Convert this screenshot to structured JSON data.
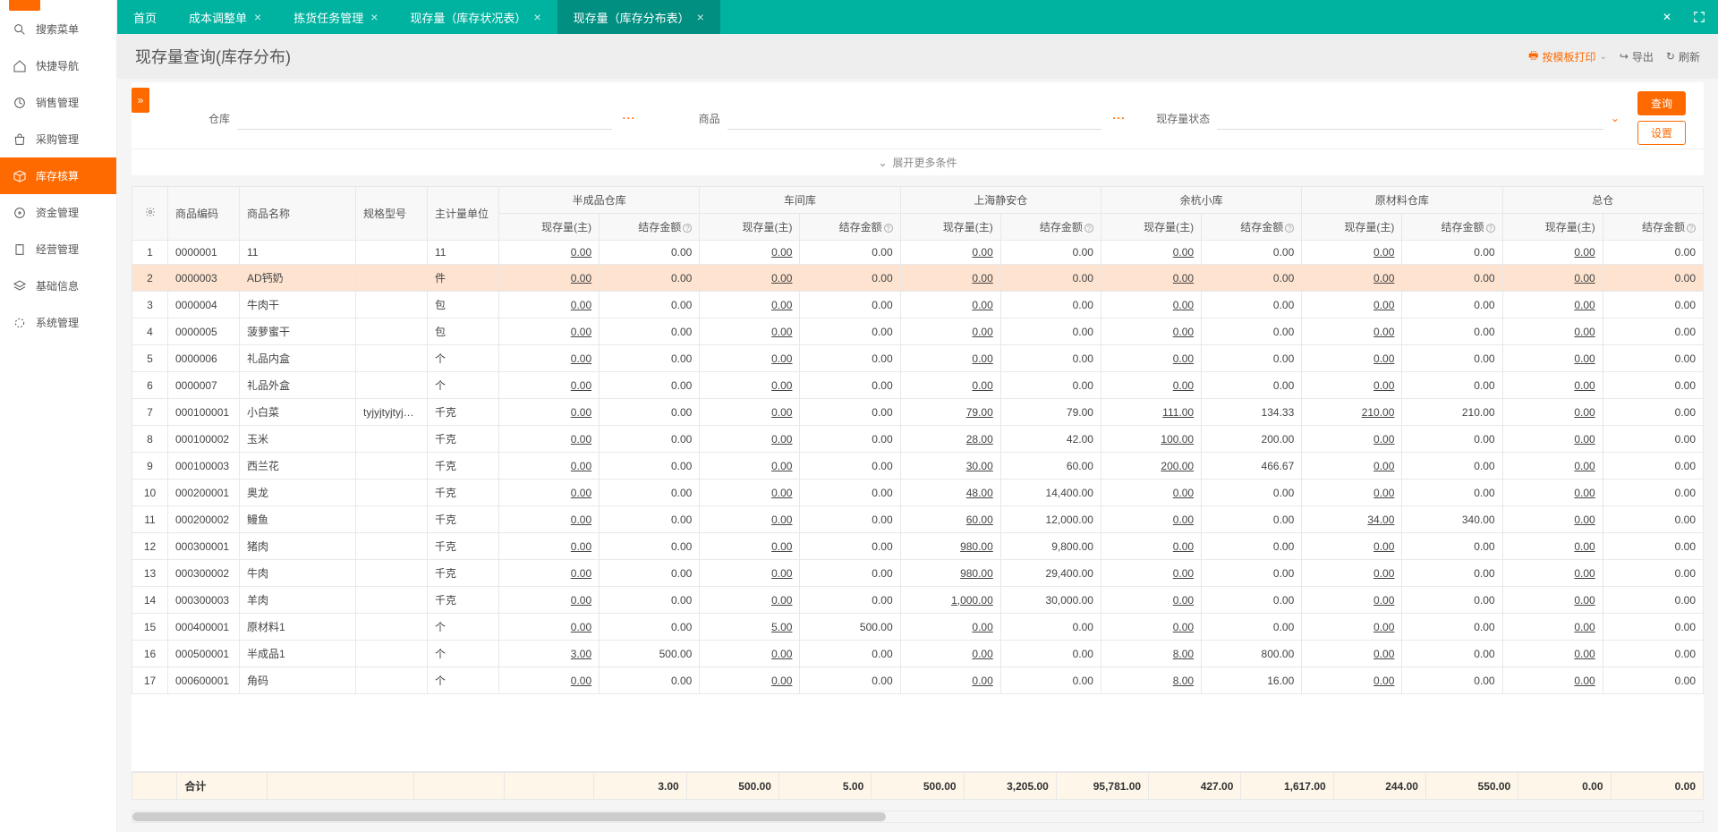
{
  "sidebar": {
    "items": [
      {
        "label": "搜索菜单",
        "icon": "search"
      },
      {
        "label": "快捷导航",
        "icon": "home"
      },
      {
        "label": "销售管理",
        "icon": "badge"
      },
      {
        "label": "采购管理",
        "icon": "bag"
      },
      {
        "label": "库存核算",
        "icon": "box",
        "active": true
      },
      {
        "label": "资金管理",
        "icon": "coin"
      },
      {
        "label": "经营管理",
        "icon": "clipboard"
      },
      {
        "label": "基础信息",
        "icon": "layers"
      },
      {
        "label": "系统管理",
        "icon": "gear-dash"
      }
    ]
  },
  "tabs": [
    {
      "label": "首页"
    },
    {
      "label": "成本调整单",
      "closable": true
    },
    {
      "label": "拣货任务管理",
      "closable": true
    },
    {
      "label": "现存量（库存状况表）",
      "closable": true
    },
    {
      "label": "现存量（库存分布表）",
      "closable": true,
      "active": true
    }
  ],
  "page": {
    "title": "现存量查询(库存分布)",
    "actions": {
      "print": "按模板打印",
      "export": "导出",
      "refresh": "刷新"
    }
  },
  "filters": {
    "warehouse_label": "仓库",
    "product_label": "商品",
    "status_label": "现存量状态",
    "query_btn": "查询",
    "settings_btn": "设置",
    "expand": "展开更多条件"
  },
  "table": {
    "group_headers": [
      "",
      "商品编码",
      "商品名称",
      "规格型号",
      "主计量单位",
      "半成品仓库",
      "车间库",
      "上海静安仓",
      "余杭小库",
      "原材料仓库",
      "总仓"
    ],
    "sub_qty": "现存量(主)",
    "sub_amt": "结存金额",
    "footer_label": "合计",
    "rows": [
      {
        "idx": 1,
        "code": "0000001",
        "name": "11",
        "spec": "",
        "unit": "11",
        "w": [
          [
            "0.00",
            "0.00"
          ],
          [
            "0.00",
            "0.00"
          ],
          [
            "0.00",
            "0.00"
          ],
          [
            "0.00",
            "0.00"
          ],
          [
            "0.00",
            "0.00"
          ],
          [
            "0.00",
            "0.00"
          ]
        ]
      },
      {
        "idx": 2,
        "code": "0000003",
        "name": "AD钙奶",
        "spec": "",
        "unit": "件",
        "w": [
          [
            "0.00",
            "0.00"
          ],
          [
            "0.00",
            "0.00"
          ],
          [
            "0.00",
            "0.00"
          ],
          [
            "0.00",
            "0.00"
          ],
          [
            "0.00",
            "0.00"
          ],
          [
            "0.00",
            "0.00"
          ]
        ],
        "hl": true
      },
      {
        "idx": 3,
        "code": "0000004",
        "name": "牛肉干",
        "spec": "",
        "unit": "包",
        "w": [
          [
            "0.00",
            "0.00"
          ],
          [
            "0.00",
            "0.00"
          ],
          [
            "0.00",
            "0.00"
          ],
          [
            "0.00",
            "0.00"
          ],
          [
            "0.00",
            "0.00"
          ],
          [
            "0.00",
            "0.00"
          ]
        ]
      },
      {
        "idx": 4,
        "code": "0000005",
        "name": "菠萝蜜干",
        "spec": "",
        "unit": "包",
        "w": [
          [
            "0.00",
            "0.00"
          ],
          [
            "0.00",
            "0.00"
          ],
          [
            "0.00",
            "0.00"
          ],
          [
            "0.00",
            "0.00"
          ],
          [
            "0.00",
            "0.00"
          ],
          [
            "0.00",
            "0.00"
          ]
        ]
      },
      {
        "idx": 5,
        "code": "0000006",
        "name": "礼品内盒",
        "spec": "",
        "unit": "个",
        "w": [
          [
            "0.00",
            "0.00"
          ],
          [
            "0.00",
            "0.00"
          ],
          [
            "0.00",
            "0.00"
          ],
          [
            "0.00",
            "0.00"
          ],
          [
            "0.00",
            "0.00"
          ],
          [
            "0.00",
            "0.00"
          ]
        ]
      },
      {
        "idx": 6,
        "code": "0000007",
        "name": "礼品外盒",
        "spec": "",
        "unit": "个",
        "w": [
          [
            "0.00",
            "0.00"
          ],
          [
            "0.00",
            "0.00"
          ],
          [
            "0.00",
            "0.00"
          ],
          [
            "0.00",
            "0.00"
          ],
          [
            "0.00",
            "0.00"
          ],
          [
            "0.00",
            "0.00"
          ]
        ]
      },
      {
        "idx": 7,
        "code": "000100001",
        "name": "小白菜",
        "spec": "tyjyjtyjtyjdf...",
        "unit": "千克",
        "w": [
          [
            "0.00",
            "0.00"
          ],
          [
            "0.00",
            "0.00"
          ],
          [
            "79.00",
            "79.00"
          ],
          [
            "111.00",
            "134.33"
          ],
          [
            "210.00",
            "210.00"
          ],
          [
            "0.00",
            "0.00"
          ]
        ]
      },
      {
        "idx": 8,
        "code": "000100002",
        "name": "玉米",
        "spec": "",
        "unit": "千克",
        "w": [
          [
            "0.00",
            "0.00"
          ],
          [
            "0.00",
            "0.00"
          ],
          [
            "28.00",
            "42.00"
          ],
          [
            "100.00",
            "200.00"
          ],
          [
            "0.00",
            "0.00"
          ],
          [
            "0.00",
            "0.00"
          ]
        ]
      },
      {
        "idx": 9,
        "code": "000100003",
        "name": "西兰花",
        "spec": "",
        "unit": "千克",
        "w": [
          [
            "0.00",
            "0.00"
          ],
          [
            "0.00",
            "0.00"
          ],
          [
            "30.00",
            "60.00"
          ],
          [
            "200.00",
            "466.67"
          ],
          [
            "0.00",
            "0.00"
          ],
          [
            "0.00",
            "0.00"
          ]
        ]
      },
      {
        "idx": 10,
        "code": "000200001",
        "name": "奥龙",
        "spec": "",
        "unit": "千克",
        "w": [
          [
            "0.00",
            "0.00"
          ],
          [
            "0.00",
            "0.00"
          ],
          [
            "48.00",
            "14,400.00"
          ],
          [
            "0.00",
            "0.00"
          ],
          [
            "0.00",
            "0.00"
          ],
          [
            "0.00",
            "0.00"
          ]
        ]
      },
      {
        "idx": 11,
        "code": "000200002",
        "name": "鳗鱼",
        "spec": "",
        "unit": "千克",
        "w": [
          [
            "0.00",
            "0.00"
          ],
          [
            "0.00",
            "0.00"
          ],
          [
            "60.00",
            "12,000.00"
          ],
          [
            "0.00",
            "0.00"
          ],
          [
            "34.00",
            "340.00"
          ],
          [
            "0.00",
            "0.00"
          ]
        ]
      },
      {
        "idx": 12,
        "code": "000300001",
        "name": "猪肉",
        "spec": "",
        "unit": "千克",
        "w": [
          [
            "0.00",
            "0.00"
          ],
          [
            "0.00",
            "0.00"
          ],
          [
            "980.00",
            "9,800.00"
          ],
          [
            "0.00",
            "0.00"
          ],
          [
            "0.00",
            "0.00"
          ],
          [
            "0.00",
            "0.00"
          ]
        ]
      },
      {
        "idx": 13,
        "code": "000300002",
        "name": "牛肉",
        "spec": "",
        "unit": "千克",
        "w": [
          [
            "0.00",
            "0.00"
          ],
          [
            "0.00",
            "0.00"
          ],
          [
            "980.00",
            "29,400.00"
          ],
          [
            "0.00",
            "0.00"
          ],
          [
            "0.00",
            "0.00"
          ],
          [
            "0.00",
            "0.00"
          ]
        ]
      },
      {
        "idx": 14,
        "code": "000300003",
        "name": "羊肉",
        "spec": "",
        "unit": "千克",
        "w": [
          [
            "0.00",
            "0.00"
          ],
          [
            "0.00",
            "0.00"
          ],
          [
            "1,000.00",
            "30,000.00"
          ],
          [
            "0.00",
            "0.00"
          ],
          [
            "0.00",
            "0.00"
          ],
          [
            "0.00",
            "0.00"
          ]
        ]
      },
      {
        "idx": 15,
        "code": "000400001",
        "name": "原材料1",
        "spec": "",
        "unit": "个",
        "w": [
          [
            "0.00",
            "0.00"
          ],
          [
            "5.00",
            "500.00"
          ],
          [
            "0.00",
            "0.00"
          ],
          [
            "0.00",
            "0.00"
          ],
          [
            "0.00",
            "0.00"
          ],
          [
            "0.00",
            "0.00"
          ]
        ]
      },
      {
        "idx": 16,
        "code": "000500001",
        "name": "半成品1",
        "spec": "",
        "unit": "个",
        "w": [
          [
            "3.00",
            "500.00"
          ],
          [
            "0.00",
            "0.00"
          ],
          [
            "0.00",
            "0.00"
          ],
          [
            "8.00",
            "800.00"
          ],
          [
            "0.00",
            "0.00"
          ],
          [
            "0.00",
            "0.00"
          ]
        ]
      },
      {
        "idx": 17,
        "code": "000600001",
        "name": "角码",
        "spec": "",
        "unit": "个",
        "w": [
          [
            "0.00",
            "0.00"
          ],
          [
            "0.00",
            "0.00"
          ],
          [
            "0.00",
            "0.00"
          ],
          [
            "8.00",
            "16.00"
          ],
          [
            "0.00",
            "0.00"
          ],
          [
            "0.00",
            "0.00"
          ]
        ]
      }
    ],
    "totals": [
      "3.00",
      "500.00",
      "5.00",
      "500.00",
      "3,205.00",
      "95,781.00",
      "427.00",
      "1,617.00",
      "244.00",
      "550.00",
      "0.00",
      "0.00"
    ]
  }
}
